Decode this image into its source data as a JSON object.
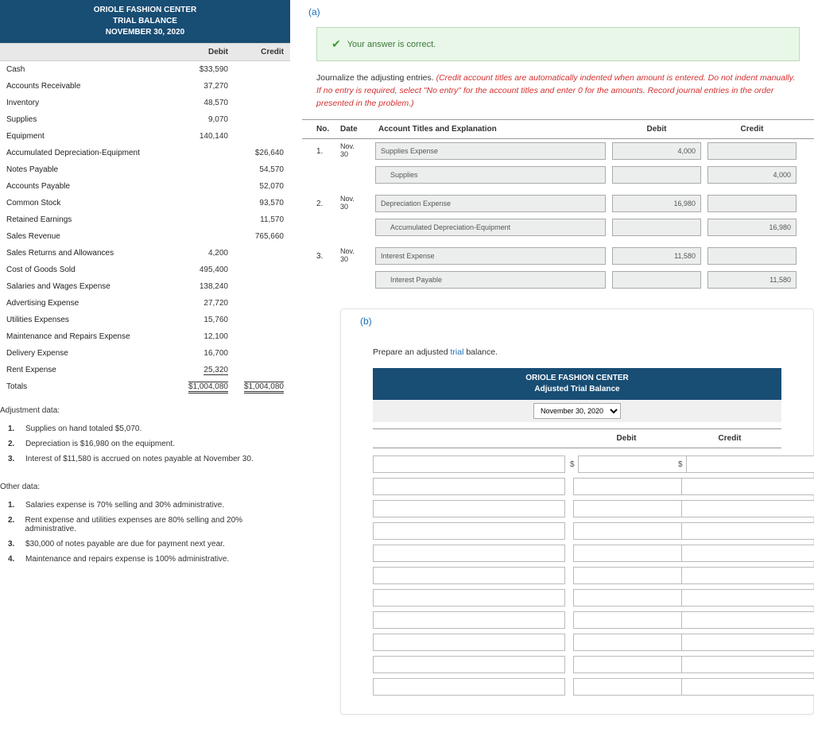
{
  "tb": {
    "title1": "ORIOLE FASHION CENTER",
    "title2": "TRIAL BALANCE",
    "title3": "NOVEMBER 30, 2020",
    "debit_h": "Debit",
    "credit_h": "Credit",
    "rows": [
      {
        "acct": "Cash",
        "dr": "$33,590",
        "cr": ""
      },
      {
        "acct": "Accounts Receivable",
        "dr": "37,270",
        "cr": ""
      },
      {
        "acct": "Inventory",
        "dr": "48,570",
        "cr": ""
      },
      {
        "acct": "Supplies",
        "dr": "9,070",
        "cr": ""
      },
      {
        "acct": "Equipment",
        "dr": "140,140",
        "cr": ""
      },
      {
        "acct": "Accumulated Depreciation-Equipment",
        "dr": "",
        "cr": "$26,640"
      },
      {
        "acct": "Notes Payable",
        "dr": "",
        "cr": "54,570"
      },
      {
        "acct": "Accounts Payable",
        "dr": "",
        "cr": "52,070"
      },
      {
        "acct": "Common Stock",
        "dr": "",
        "cr": "93,570"
      },
      {
        "acct": "Retained Earnings",
        "dr": "",
        "cr": "11,570"
      },
      {
        "acct": "Sales Revenue",
        "dr": "",
        "cr": "765,660"
      },
      {
        "acct": "Sales Returns and Allowances",
        "dr": "4,200",
        "cr": ""
      },
      {
        "acct": "Cost of Goods Sold",
        "dr": "495,400",
        "cr": ""
      },
      {
        "acct": "Salaries and Wages Expense",
        "dr": "138,240",
        "cr": ""
      },
      {
        "acct": "Advertising Expense",
        "dr": "27,720",
        "cr": ""
      },
      {
        "acct": "Utilities Expenses",
        "dr": "15,760",
        "cr": ""
      },
      {
        "acct": "Maintenance and Repairs Expense",
        "dr": "12,100",
        "cr": ""
      },
      {
        "acct": "Delivery Expense",
        "dr": "16,700",
        "cr": ""
      },
      {
        "acct": "Rent Expense",
        "dr": "25,320",
        "cr": ""
      }
    ],
    "totals_label": "Totals",
    "totals_dr": "$1,004,080",
    "totals_cr": "$1,004,080"
  },
  "adj": {
    "title": "Adjustment data:",
    "items": [
      "Supplies on hand totaled $5,070.",
      "Depreciation is $16,980 on the equipment.",
      "Interest of $11,580 is accrued on notes payable at November 30."
    ]
  },
  "other": {
    "title": "Other data:",
    "items": [
      "Salaries expense is 70% selling and 30% administrative.",
      "Rent expense and utilities expenses are 80% selling and 20% administrative.",
      "$30,000 of notes payable are due for payment next year.",
      "Maintenance and repairs expense is 100% administrative."
    ]
  },
  "a": {
    "label": "(a)",
    "correct": "Your answer is correct.",
    "instr_plain": "Journalize the adjusting entries. ",
    "instr_red": "(Credit account titles are automatically indented when amount is entered. Do not indent manually. If no entry is required, select \"No entry\" for the account titles and enter 0 for the amounts. Record journal entries in the order presented in the problem.)",
    "h_no": "No.",
    "h_date": "Date",
    "h_acct": "Account Titles and Explanation",
    "h_dr": "Debit",
    "h_cr": "Credit",
    "entries": [
      {
        "no": "1.",
        "date": "Nov. 30",
        "lines": [
          {
            "acct": "Supplies Expense",
            "dr": "4,000",
            "cr": "",
            "indent": false
          },
          {
            "acct": "Supplies",
            "dr": "",
            "cr": "4,000",
            "indent": true
          }
        ]
      },
      {
        "no": "2.",
        "date": "Nov. 30",
        "lines": [
          {
            "acct": "Depreciation Expense",
            "dr": "16,980",
            "cr": "",
            "indent": false
          },
          {
            "acct": "Accumulated Depreciation-Equipment",
            "dr": "",
            "cr": "16,980",
            "indent": true
          }
        ]
      },
      {
        "no": "3.",
        "date": "Nov. 30",
        "lines": [
          {
            "acct": "Interest Expense",
            "dr": "11,580",
            "cr": "",
            "indent": false
          },
          {
            "acct": "Interest Payable",
            "dr": "",
            "cr": "11,580",
            "indent": true
          }
        ]
      }
    ]
  },
  "b": {
    "label": "(b)",
    "instr_pre": "Prepare an adjusted ",
    "instr_link": "trial",
    "instr_post": " balance.",
    "title1": "ORIOLE FASHION CENTER",
    "title2": "Adjusted Trial Balance",
    "date": "November 30, 2020",
    "h_dr": "Debit",
    "h_cr": "Credit",
    "dollar": "$",
    "row_count": 11
  }
}
